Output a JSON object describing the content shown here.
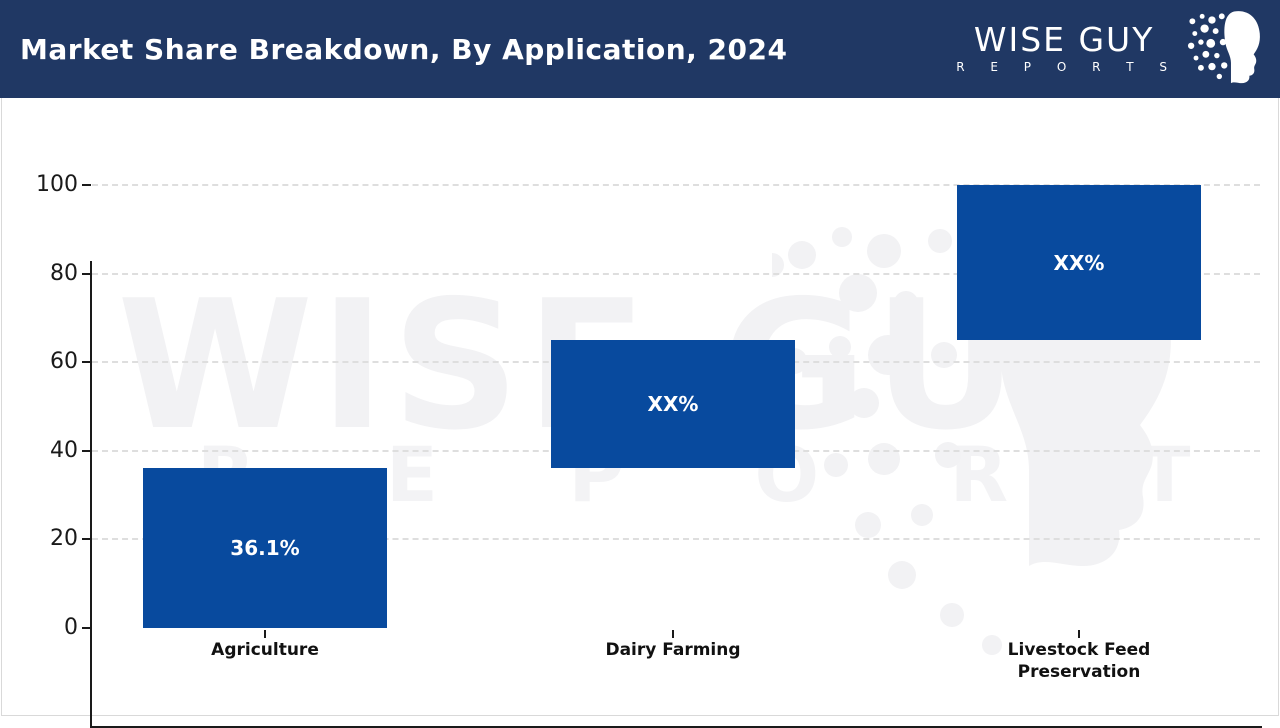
{
  "header": {
    "title": "Market Share Breakdown, By Application, 2024",
    "logo": {
      "line1": "WISE GUY",
      "line2": "R E P O R T S"
    }
  },
  "watermark": {
    "line1": "WISE GUY",
    "line2": "R E P O R T S"
  },
  "colors": {
    "header_bg": "#203864",
    "bar": "#084a9e",
    "grid": "#dedede",
    "axis": "#1a1a1a",
    "panel_border": "#d9d9d9",
    "watermark": "#f2f2f4",
    "bar_label": "#ffffff"
  },
  "chart_data": {
    "type": "bar",
    "subtype": "floating-segment-waterfall",
    "title": "Market Share Breakdown, By Application, 2024",
    "categories": [
      "Agriculture",
      "Dairy Farming",
      "Livestock Feed Preservation"
    ],
    "categories_display": [
      [
        "Agriculture"
      ],
      [
        "Dairy Farming"
      ],
      [
        "Livestock Feed",
        "Preservation"
      ]
    ],
    "segments": [
      {
        "category": "Agriculture",
        "start": 0,
        "end": 36.1,
        "label": "36.1%"
      },
      {
        "category": "Dairy Farming",
        "start": 36.1,
        "end": 65,
        "label": "XX%"
      },
      {
        "category": "Livestock Feed Preservation",
        "start": 65,
        "end": 100,
        "label": "XX%"
      }
    ],
    "xlabel": "",
    "ylabel": "",
    "ylim": [
      0,
      105
    ],
    "yticks": [
      0,
      20,
      40,
      60,
      80,
      100
    ],
    "grid": "horizontal-dashed",
    "legend": "none",
    "bar_color": "#084a9e"
  }
}
